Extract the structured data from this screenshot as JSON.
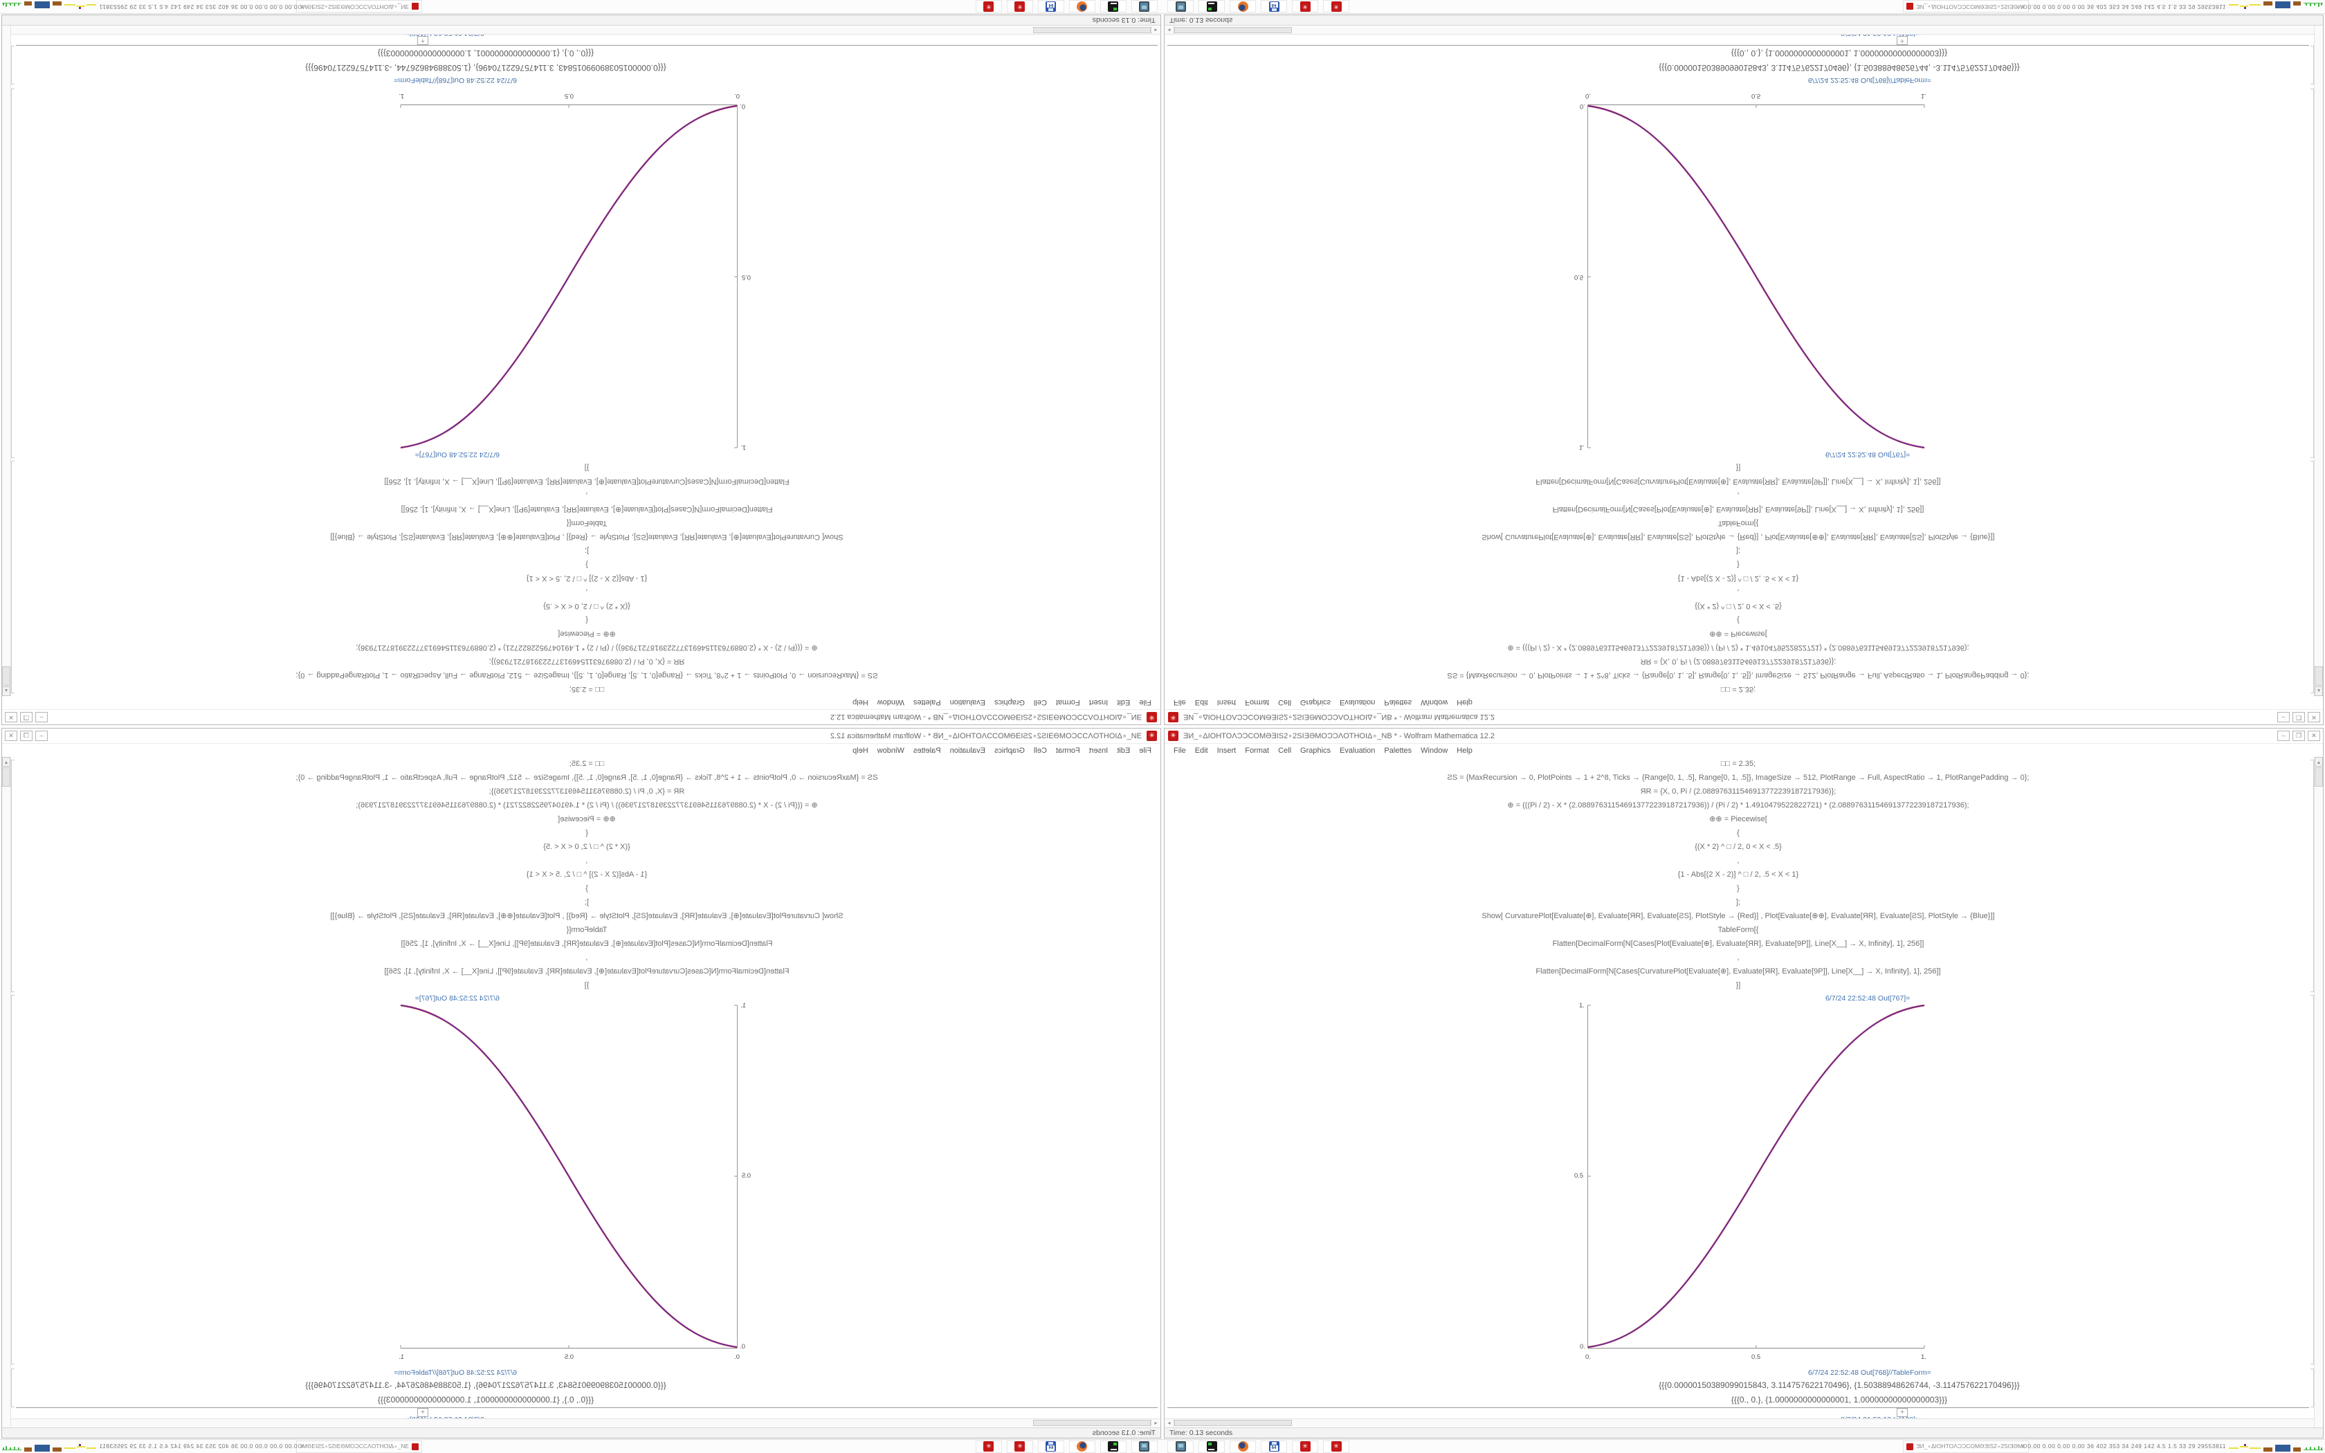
{
  "window": {
    "title": "ƎИ_∘ΔIOHTOΛƆƆCOMӘƎIS2∘2SIƎӘMOƆƆΛOTHOIΔ∘_NB * - Wolfram Mathematica 12.2",
    "menu": [
      "File",
      "Edit",
      "Insert",
      "Format",
      "Cell",
      "Graphics",
      "Evaluation",
      "Palettes",
      "Window",
      "Help"
    ],
    "minimize_glyph": "–",
    "maximize_glyph": "❒",
    "close_glyph": "✕",
    "app_icon_glyph": "✳"
  },
  "notebook": {
    "code_lines": [
      "□□ = 2.35;",
      "ƧS = {MaxRecursion → 0, PlotPoints → 1 + 2^8, Ticks → {Range[0, 1, .5], Range[0, 1, .5]}, ImageSize → 512, PlotRange → Full, AspectRatio → 1, PlotRangePadding → 0};",
      "ЯR = {X, 0, Pi / (2.088976311546913772239187217936)};",
      "⊕ = (((Pi / 2) - X * (2.088976311546913772239187217936)) / (Pi / 2) * 1.4910479522822721) * (2.088976311546913772239187217936);",
      "⊕⊕ = Piecewise[",
      "{",
      "{(X * 2) ^ □ / 2, 0 < X < .5}",
      ",",
      "{1 - Abs[(2 X - 2)] ^ □ / 2, .5 < X < 1}",
      "}",
      "];",
      "Show[  CurvaturePlot[Evaluate[⊕], Evaluate[ЯR], Evaluate[ƧS], PlotStyle → {Red}]  ,  Plot[Evaluate[⊕⊕], Evaluate[ЯR], Evaluate[ƧS], PlotStyle → {Blue}]]",
      "TableForm[{",
      "Flatten[DecimalForm[N[Cases[Plot[Evaluate[⊕], Evaluate[ЯR], Evaluate[9P]], Line[X__] → X, Infinity], 1], 256]]",
      ",",
      "Flatten[DecimalForm[N[Cases[CurvaturePlot[Evaluate[⊕], Evaluate[ЯR], Evaluate[9P]], Line[X__] → X, Infinity], 1], 256]]",
      "}]"
    ],
    "out_plot_label": "6/7/24 22:52:48 Out[767]=",
    "out_table_label": "6/7/24 22:52:48 Out[768]//TableForm=",
    "table_rows": [
      "{{{0.00000150389099015843, 3.114757622170496}, {1.50388948626744, -3.114757622170496}}}",
      "{{{0., 0.}, {1.0000000000000001, 1.00000000000000003}}}"
    ],
    "insert_plus_glyph": "+",
    "next_in_label": "8/7/24 21:59:13 In[128]:=",
    "scroll_up_glyph": "▴",
    "scroll_left_glyph": "◂"
  },
  "plot": {
    "x_ticks": [
      "0.",
      "0.5",
      "1."
    ],
    "y_ticks": [
      "1.",
      "0.5",
      "0."
    ],
    "red_color": "#cc2231",
    "blue_color": "#3535cf",
    "axis_color": "#8a8a8a"
  },
  "chart_data": {
    "type": "line",
    "x": [
      0,
      0.1,
      0.2,
      0.3,
      0.4,
      0.5,
      0.6,
      0.7,
      0.8,
      0.9,
      1.0
    ],
    "series": [
      {
        "name": "CurvaturePlot[⊕] (Red)",
        "color": "#cc2231",
        "values": [
          0,
          0.011,
          0.058,
          0.151,
          0.296,
          0.5,
          0.704,
          0.849,
          0.942,
          0.989,
          1.0
        ]
      },
      {
        "name": "Plot[⊕⊕] (Blue)",
        "color": "#3535cf",
        "values": [
          0,
          0.011,
          0.058,
          0.151,
          0.296,
          0.5,
          0.704,
          0.849,
          0.942,
          0.989,
          1.0
        ]
      }
    ],
    "title": "",
    "xlabel": "",
    "ylabel": "",
    "xlim": [
      0,
      1
    ],
    "ylim": [
      0,
      1
    ],
    "x_tick_labels": [
      "0.",
      "0.5",
      "1."
    ],
    "y_tick_labels": [
      "0.",
      "0.5",
      "1."
    ],
    "grid": false,
    "legend": "none",
    "note": "Two coincident smoothstep curves (red under blue) appearing purple; axes on left and bottom only"
  },
  "status": {
    "time_label": "Time: 0.13 seconds"
  },
  "taskbar": {
    "icons": [
      "display-icon",
      "terminal-icon",
      "firefox-icon",
      "floppy64-icon",
      "mathematica-icon",
      "mathematica-icon"
    ],
    "floppy_text": "64",
    "mathematica_glyph": "✳",
    "task_window_label": "ƎИ_∘ΔIOHTOΛƆƆCOMӘƎIS2∘2SIƎӘMO…",
    "chevron_glyph": "«",
    "monitor_values": "0.00 0.00 0.00 0.00   36   402   353   34   249   142   4.5   1.5   33   29   29553811"
  },
  "composition": {
    "note": "Screen is a 2x2 tiling of the same 1680x1050 desktop capture: bottom-right original, bottom-left mirrored horizontally, top-right mirrored vertically, top-left rotated 180 degrees"
  }
}
